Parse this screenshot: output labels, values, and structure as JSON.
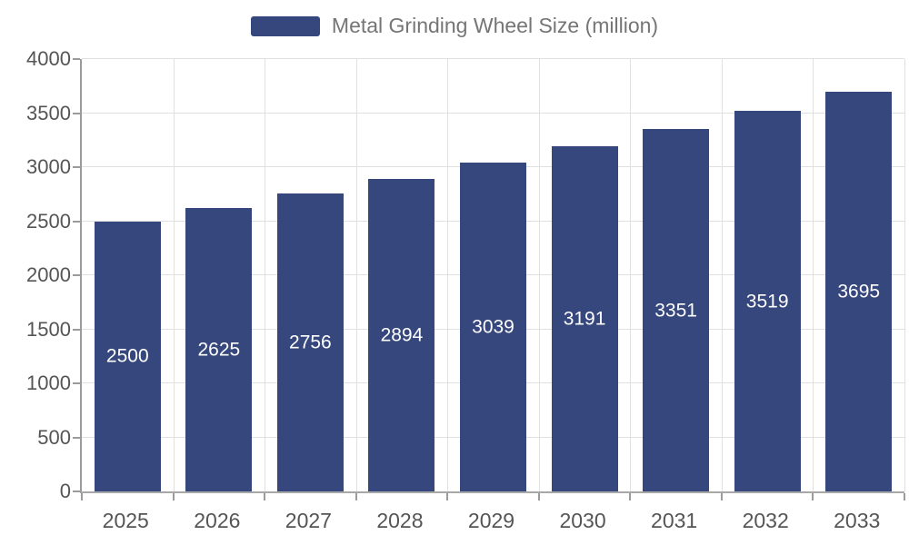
{
  "chart_data": {
    "type": "bar",
    "title": "Metal Grinding Wheel Size (million)",
    "categories": [
      "2025",
      "2026",
      "2027",
      "2028",
      "2029",
      "2030",
      "2031",
      "2032",
      "2033"
    ],
    "values": [
      2500,
      2625,
      2756,
      2894,
      3039,
      3191,
      3351,
      3519,
      3695
    ],
    "xlabel": "",
    "ylabel": "",
    "ylim": [
      0,
      4000
    ],
    "yticks": [
      0,
      500,
      1000,
      1500,
      2000,
      2500,
      3000,
      3500,
      4000
    ],
    "grid": true,
    "legend_position": "top",
    "bar_label_position": "inside-center"
  },
  "legend": {
    "series_label": "Metal Grinding Wheel Size (million)"
  },
  "colors": {
    "bar_fill": "#36477E",
    "bar_label_text": "#ffffff",
    "gridline": "#e0e0e0",
    "axis_line": "#9b9b9b",
    "tick_label_text": "#555555",
    "legend_text": "#757575",
    "background": "#ffffff"
  }
}
